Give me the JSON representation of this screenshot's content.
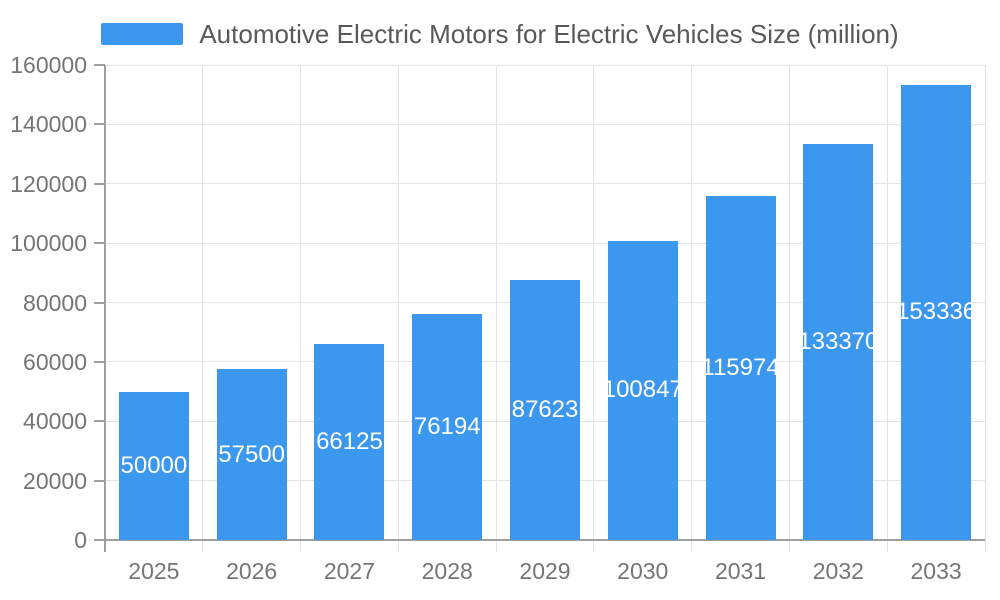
{
  "legend": {
    "label": "Automotive Electric Motors for Electric Vehicles Size (million)"
  },
  "chart_data": {
    "type": "bar",
    "title": "Automotive Electric Motors for Electric Vehicles Size (million)",
    "categories": [
      "2025",
      "2026",
      "2027",
      "2028",
      "2029",
      "2030",
      "2031",
      "2032",
      "2033"
    ],
    "series": [
      {
        "name": "Automotive Electric Motors for Electric Vehicles Size (million)",
        "values": [
          50000,
          57500,
          66125,
          76194,
          87623,
          100847,
          115974,
          133370,
          153336
        ]
      }
    ],
    "bar_labels_shown": true,
    "xlabel": "",
    "ylabel": "",
    "ylim": [
      0,
      160000
    ],
    "ytick_step": 20000,
    "yticks": [
      0,
      20000,
      40000,
      60000,
      80000,
      100000,
      120000,
      140000,
      160000
    ],
    "grid": true,
    "legend_position": "top",
    "colors": {
      "bar": "#3C97EE",
      "bar_label_text": "#FFFFFF",
      "title_text": "#58595B",
      "tick_label_text": "#757575",
      "axis_line": "#9E9E9E",
      "grid_line": "#E3E3E3",
      "background": "#FFFFFF"
    }
  }
}
